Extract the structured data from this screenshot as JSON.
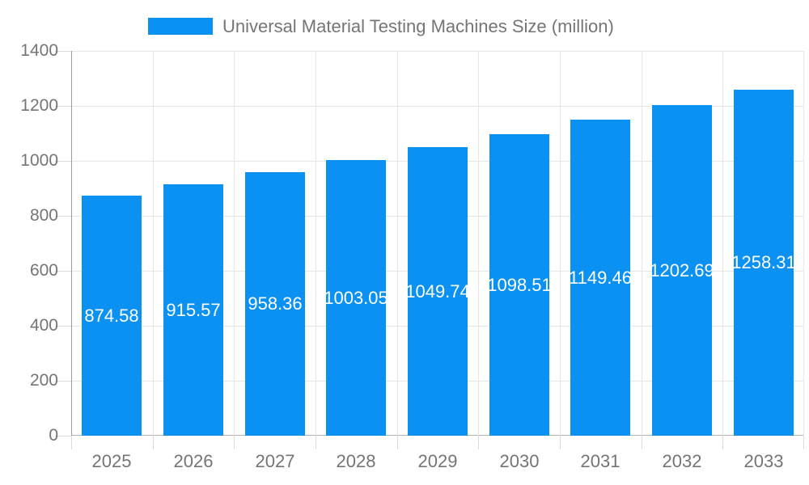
{
  "chart_data": {
    "type": "bar",
    "title": "Universal Material Testing Machines Size (million)",
    "categories": [
      "2025",
      "2026",
      "2027",
      "2028",
      "2029",
      "2030",
      "2031",
      "2032",
      "2033"
    ],
    "values": [
      874.58,
      915.57,
      958.36,
      1003.05,
      1049.74,
      1098.51,
      1149.46,
      1202.69,
      1258.31
    ],
    "value_labels": [
      "874.58",
      "915.57",
      "958.36",
      "1003.05",
      "1049.74",
      "1098.51",
      "1149.46",
      "1202.69",
      "1258.31"
    ],
    "xlabel": "",
    "ylabel": "",
    "ylim": [
      0,
      1400
    ],
    "y_ticks": [
      0,
      200,
      400,
      600,
      800,
      1000,
      1200,
      1400
    ],
    "grid": true,
    "legend_position": "top",
    "colors": {
      "bar": "#0a91f2",
      "grid": "#e6e6e6",
      "tick": "#dadada",
      "axis": "#9e9e9e",
      "baseline": "#b3b3b3",
      "axis_label": "#757575",
      "title": "#757575",
      "value_label": "#ffffff",
      "background": "#ffffff"
    }
  }
}
